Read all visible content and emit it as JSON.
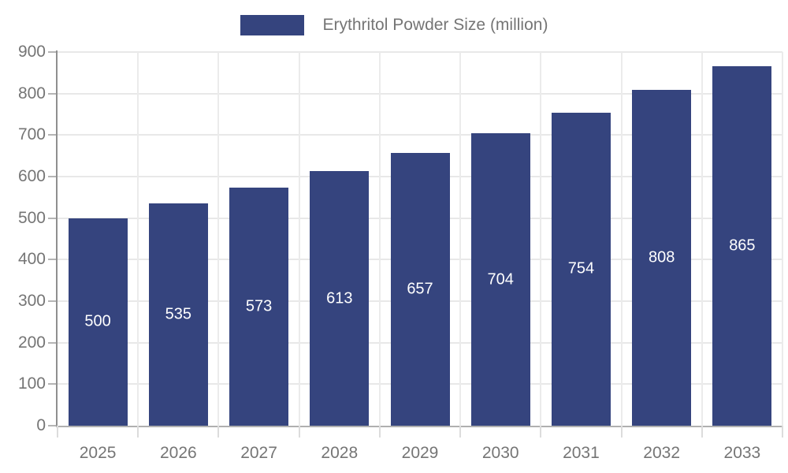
{
  "legend": {
    "label": "Erythritol Powder Size (million)"
  },
  "chart_data": {
    "type": "bar",
    "title": "",
    "series_name": "Erythritol Powder Size (million)",
    "categories": [
      "2025",
      "2026",
      "2027",
      "2028",
      "2029",
      "2030",
      "2031",
      "2032",
      "2033"
    ],
    "values": [
      500,
      535,
      573,
      613,
      657,
      704,
      754,
      808,
      865
    ],
    "value_labels": [
      "500",
      "535",
      "573",
      "613",
      "657",
      "704",
      "754",
      "808",
      "865"
    ],
    "xlabel": "",
    "ylabel": "",
    "ylim": [
      0,
      900
    ],
    "ytick_step": 100,
    "yticks": [
      "0",
      "100",
      "200",
      "300",
      "400",
      "500",
      "600",
      "700",
      "800",
      "900"
    ],
    "grid": true,
    "legend_position": "top",
    "colors": {
      "bar": "#35447E",
      "bar_value_text": "#ffffff",
      "axis_text": "#757575",
      "legend_text": "#757575",
      "gridline": "#e8e8e8",
      "background": "#ffffff"
    }
  }
}
